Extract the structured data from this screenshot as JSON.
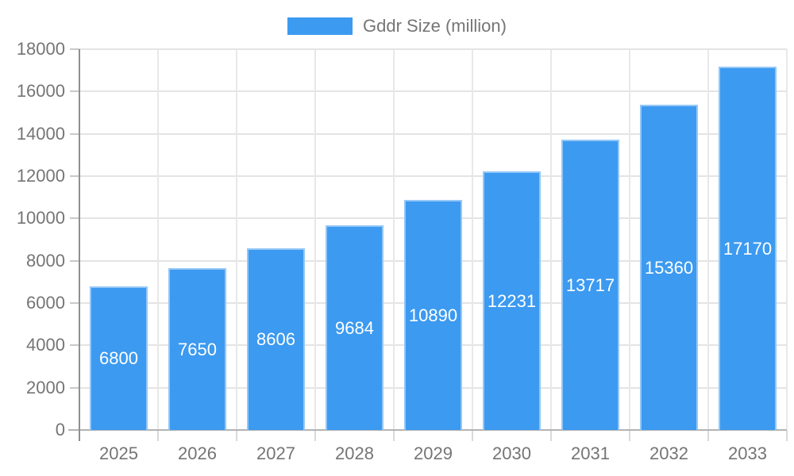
{
  "chart_data": {
    "type": "bar",
    "title": "",
    "xlabel": "",
    "ylabel": "",
    "categories": [
      "2025",
      "2026",
      "2027",
      "2028",
      "2029",
      "2030",
      "2031",
      "2032",
      "2033"
    ],
    "series": [
      {
        "name": "Gddr Size (million)",
        "values": [
          6800,
          7650,
          8606,
          9684,
          10890,
          12231,
          13717,
          15360,
          17170
        ]
      }
    ],
    "value_labels": [
      "6800",
      "7650",
      "8606",
      "9684",
      "10890",
      "12231",
      "13717",
      "15360",
      "17170"
    ],
    "ylim": [
      0,
      18000
    ],
    "ytick_step": 2000,
    "ytick_labels": [
      "0",
      "2000",
      "4000",
      "6000",
      "8000",
      "10000",
      "12000",
      "14000",
      "16000",
      "18000"
    ],
    "grid": true,
    "legend_position": "top",
    "bar_color": "#3c9af0",
    "bar_label_color": "#ffffff",
    "axis_text_color": "#757575"
  }
}
